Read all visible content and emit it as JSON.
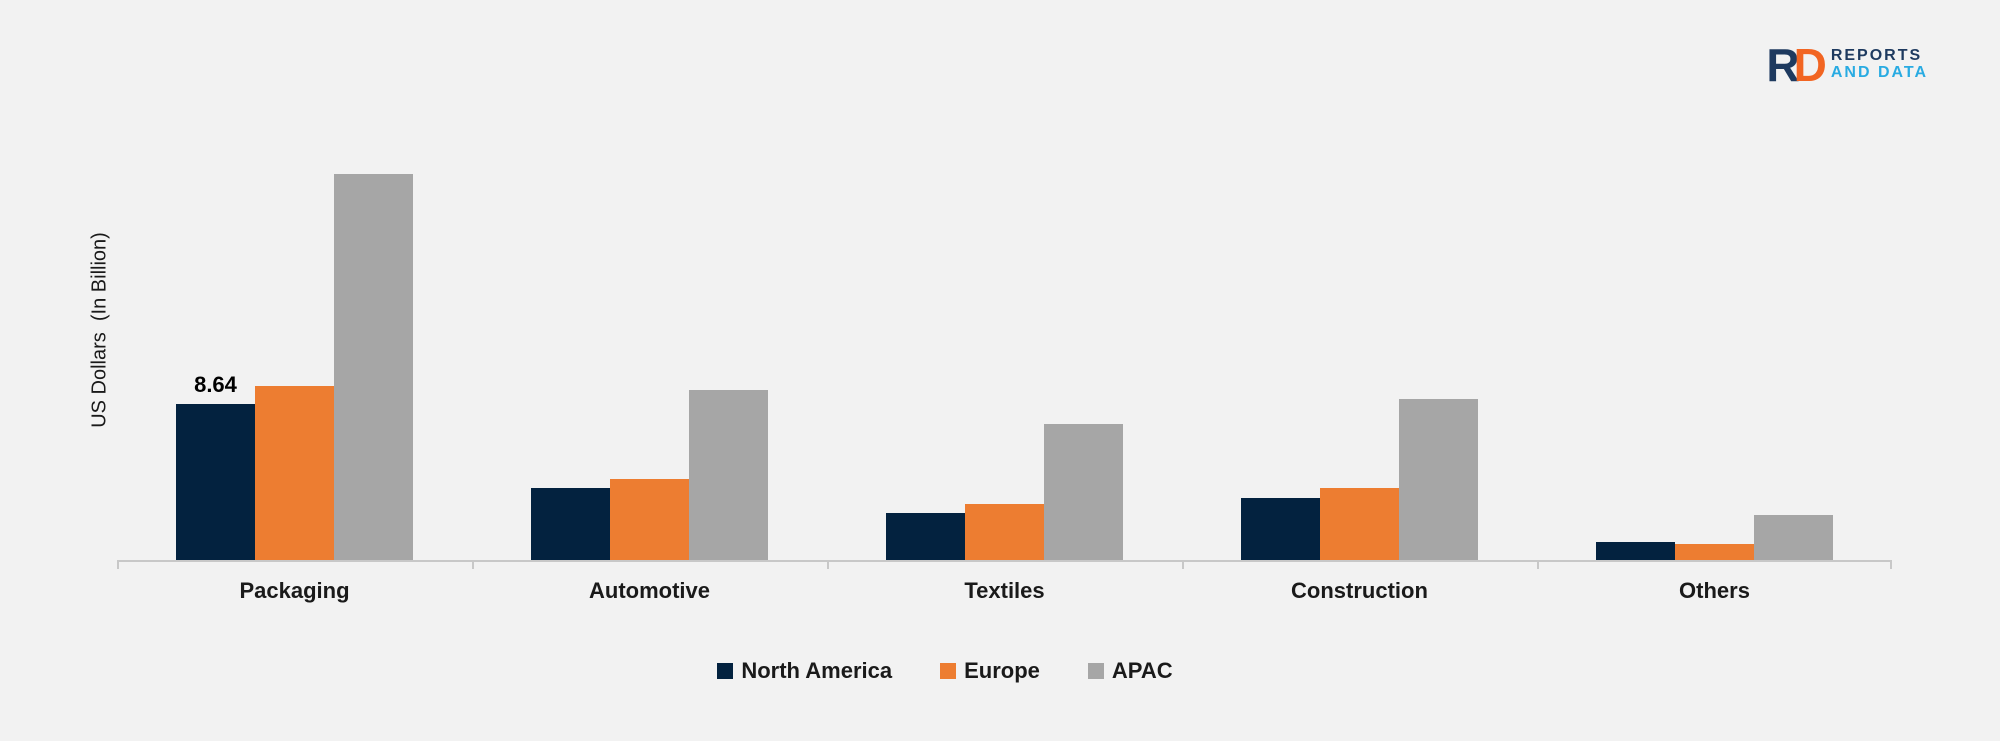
{
  "page": {
    "background": "#f2f2f2"
  },
  "logo": {
    "mark_r": "R",
    "mark_d": "D",
    "line1": "REPORTS",
    "line2": "AND DATA",
    "navy": "#1e3a5f",
    "orange": "#f26522",
    "cyan": "#29abe2"
  },
  "chart_data": {
    "type": "bar",
    "title": "",
    "xlabel": "",
    "ylabel": "US Dollars  (In Billion)",
    "categories": [
      "Packaging",
      "Automotive",
      "Textiles",
      "Construction",
      "Others"
    ],
    "series": [
      {
        "name": "North America",
        "color": "#03223f",
        "values": [
          8.64,
          4.0,
          2.6,
          3.4,
          1.0
        ]
      },
      {
        "name": "Europe",
        "color": "#ed7d31",
        "values": [
          9.6,
          4.5,
          3.1,
          4.0,
          0.9
        ]
      },
      {
        "name": "APAC",
        "color": "#a6a6a6",
        "values": [
          21.3,
          9.4,
          7.5,
          8.9,
          2.5
        ]
      }
    ],
    "data_labels": [
      {
        "series_index": 0,
        "category_index": 0,
        "text": "8.64"
      }
    ],
    "ylim": [
      0,
      22
    ],
    "grid": false,
    "y_axis_ticks_visible": false,
    "legend_position": "bottom",
    "axis_color": "#c8c8c8"
  }
}
